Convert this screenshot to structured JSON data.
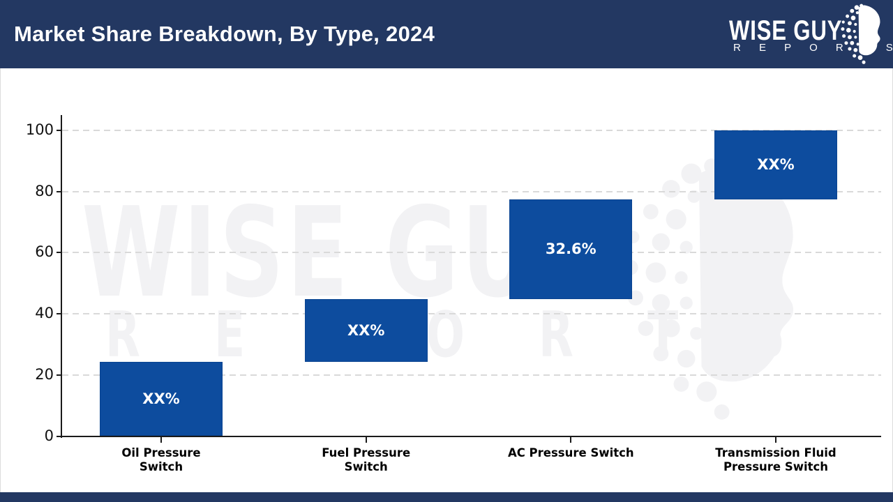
{
  "header": {
    "title": "Market Share Breakdown, By Type, 2024",
    "brand_line1": "WISE GUY",
    "brand_line2": "R E P O R T S"
  },
  "watermark": {
    "line1": "WISE GUY",
    "line2": "R E P O R T S"
  },
  "chart_data": {
    "type": "bar",
    "subtype": "floating-waterfall-bars",
    "title": "Market Share Breakdown, By Type, 2024",
    "categories": [
      "Oil Pressure Switch",
      "Fuel Pressure Switch",
      "AC Pressure Switch",
      "Transmission Fluid Pressure Switch"
    ],
    "category_label_lines": [
      [
        "Oil Pressure",
        "Switch"
      ],
      [
        "Fuel Pressure",
        "Switch"
      ],
      [
        "AC Pressure Switch"
      ],
      [
        "Transmission Fluid",
        "Pressure Switch"
      ]
    ],
    "segments": [
      {
        "category": "Oil Pressure Switch",
        "start": 0,
        "end": 24.4,
        "label": "XX%"
      },
      {
        "category": "Fuel Pressure Switch",
        "start": 24.4,
        "end": 44.9,
        "label": "XX%"
      },
      {
        "category": "AC Pressure Switch",
        "start": 44.9,
        "end": 77.5,
        "label": "32.6%"
      },
      {
        "category": "Transmission Fluid Pressure Switch",
        "start": 77.5,
        "end": 100,
        "label": "XX%"
      }
    ],
    "xlabel": "",
    "ylabel": "",
    "ylim": [
      0,
      100
    ],
    "yticks": [
      0,
      20,
      40,
      60,
      80,
      100
    ],
    "grid": "horizontal-dashed",
    "legend": "none",
    "bar_color": "#0d4c9e"
  },
  "colors": {
    "header_navy": "#233862",
    "footer_navy": "#233862",
    "bar_blue": "#0d4c9e",
    "bar_edge": "#0a4491",
    "grid_gray": "#d9d9d9",
    "axis_black": "#1a1a1a",
    "watermark_gray": "#f2f2f4",
    "title_white": "#ffffff"
  }
}
